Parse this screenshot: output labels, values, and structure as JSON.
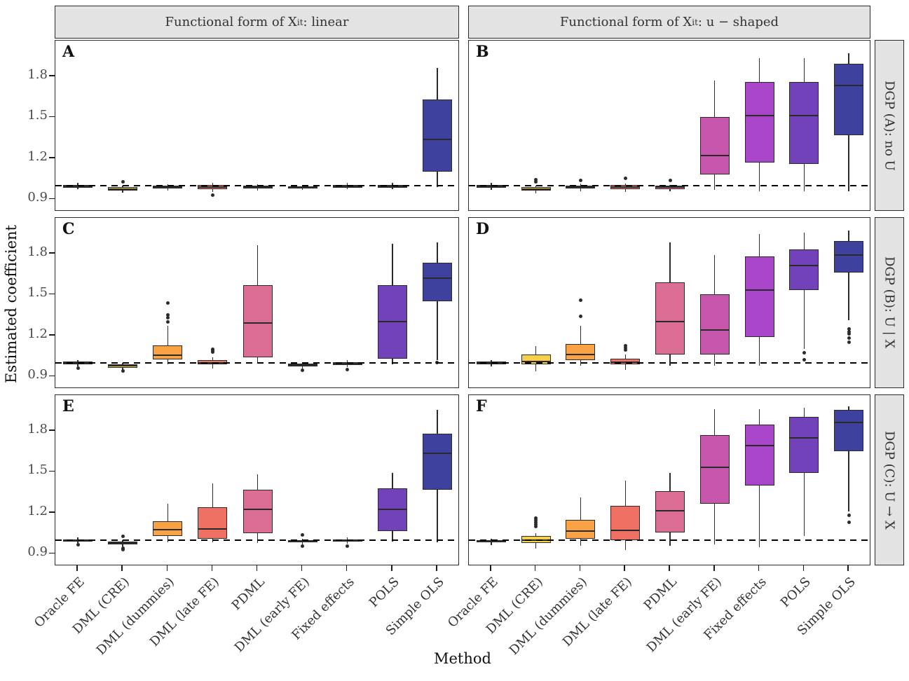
{
  "chart_data": {
    "type": "boxplot",
    "title_x": "Method",
    "title_y": "Estimated coefficient",
    "col_facets": [
      {
        "pre": "Functional form of X",
        "sub": "it",
        "post": " : linear"
      },
      {
        "pre": "Functional form of X",
        "sub": "it",
        "post": " : u − shaped"
      }
    ],
    "row_facets": [
      "DGP (A): no U",
      "DGP (B): U | X",
      "DGP (C): U → X"
    ],
    "methods": [
      "Oracle FE",
      "DML (CRE)",
      "DML (dummies)",
      "DML (late FE)",
      "PDML",
      "DML (early FE)",
      "Fixed effects",
      "POLS",
      "Simple OLS"
    ],
    "method_colors": [
      "#cdd94a",
      "#f6d04b",
      "#f9a243",
      "#ee7163",
      "#dc6d95",
      "#c657ad",
      "#a845c8",
      "#7142ba",
      "#3e419e"
    ],
    "y_ticks": [
      1.8,
      1.5,
      1.2,
      0.9
    ],
    "y_range": [
      0.81,
      2.06
    ],
    "reference_line": 1.0,
    "legend": "none",
    "grid": "off",
    "colors": {
      "strip_bg": "#e3e3e3",
      "panel_border": "#2a2a2a",
      "box_border": "#2a2a2a",
      "outlier": "#2b2b2b",
      "reference_line": "#000000"
    },
    "panels": [
      {
        "label": "A",
        "row": 0,
        "col": 0,
        "boxes": [
          {
            "method": "Oracle FE",
            "whislo": 0.975,
            "q1": 0.985,
            "med": 0.995,
            "q3": 1.005,
            "whishi": 1.02,
            "outliers": []
          },
          {
            "method": "DML (CRE)",
            "whislo": 0.95,
            "q1": 0.962,
            "med": 0.975,
            "q3": 0.99,
            "whishi": 1.0,
            "outliers": [
              1.03
            ]
          },
          {
            "method": "DML (dummies)",
            "whislo": 0.965,
            "q1": 0.98,
            "med": 0.99,
            "q3": 1.0,
            "whishi": 1.012,
            "outliers": []
          },
          {
            "method": "DML (late FE)",
            "whislo": 0.955,
            "q1": 0.975,
            "med": 0.99,
            "q3": 1.003,
            "whishi": 1.018,
            "outliers": [
              0.93
            ]
          },
          {
            "method": "PDML",
            "whislo": 0.965,
            "q1": 0.978,
            "med": 0.988,
            "q3": 0.998,
            "whishi": 1.01,
            "outliers": []
          },
          {
            "method": "DML (early FE)",
            "whislo": 0.968,
            "q1": 0.978,
            "med": 0.987,
            "q3": 0.995,
            "whishi": 1.005,
            "outliers": []
          },
          {
            "method": "Fixed effects",
            "whislo": 0.972,
            "q1": 0.985,
            "med": 0.995,
            "q3": 1.005,
            "whishi": 1.018,
            "outliers": []
          },
          {
            "method": "POLS",
            "whislo": 0.972,
            "q1": 0.985,
            "med": 0.995,
            "q3": 1.006,
            "whishi": 1.018,
            "outliers": []
          },
          {
            "method": "Simple OLS",
            "whislo": 0.99,
            "q1": 1.1,
            "med": 1.34,
            "q3": 1.63,
            "whishi": 1.86,
            "outliers": []
          }
        ]
      },
      {
        "label": "B",
        "row": 0,
        "col": 1,
        "boxes": [
          {
            "method": "Oracle FE",
            "whislo": 0.97,
            "q1": 0.985,
            "med": 0.995,
            "q3": 1.005,
            "whishi": 1.02,
            "outliers": []
          },
          {
            "method": "DML (CRE)",
            "whislo": 0.945,
            "q1": 0.962,
            "med": 0.975,
            "q3": 0.988,
            "whishi": 1.0,
            "outliers": [
              1.03,
              1.045
            ]
          },
          {
            "method": "DML (dummies)",
            "whislo": 0.96,
            "q1": 0.978,
            "med": 0.99,
            "q3": 1.002,
            "whishi": 1.015,
            "outliers": [
              1.04
            ]
          },
          {
            "method": "DML (late FE)",
            "whislo": 0.955,
            "q1": 0.975,
            "med": 0.99,
            "q3": 1.003,
            "whishi": 1.015,
            "outliers": [
              1.055
            ]
          },
          {
            "method": "PDML",
            "whislo": 0.96,
            "q1": 0.975,
            "med": 0.987,
            "q3": 0.997,
            "whishi": 1.007,
            "outliers": [
              1.04
            ]
          },
          {
            "method": "DML (early FE)",
            "whislo": 0.97,
            "q1": 1.08,
            "med": 1.22,
            "q3": 1.5,
            "whishi": 1.77,
            "outliers": []
          },
          {
            "method": "Fixed effects",
            "whislo": 0.96,
            "q1": 1.17,
            "med": 1.51,
            "q3": 1.76,
            "whishi": 1.93,
            "outliers": []
          },
          {
            "method": "POLS",
            "whislo": 0.96,
            "q1": 1.16,
            "med": 1.51,
            "q3": 1.76,
            "whishi": 1.93,
            "outliers": []
          },
          {
            "method": "Simple OLS",
            "whislo": 0.96,
            "q1": 1.37,
            "med": 1.73,
            "q3": 1.89,
            "whishi": 1.97,
            "outliers": []
          }
        ]
      },
      {
        "label": "C",
        "row": 1,
        "col": 0,
        "boxes": [
          {
            "method": "Oracle FE",
            "whislo": 0.975,
            "q1": 0.988,
            "med": 0.998,
            "q3": 1.008,
            "whishi": 1.02,
            "outliers": [
              0.96
            ]
          },
          {
            "method": "DML (CRE)",
            "whislo": 0.95,
            "q1": 0.965,
            "med": 0.978,
            "q3": 0.99,
            "whishi": 1.0,
            "outliers": [
              0.94
            ]
          },
          {
            "method": "DML (dummies)",
            "whislo": 0.99,
            "q1": 1.025,
            "med": 1.055,
            "q3": 1.13,
            "whishi": 1.27,
            "outliers": [
              1.3,
              1.33,
              1.35,
              1.44
            ]
          },
          {
            "method": "DML (late FE)",
            "whislo": 0.96,
            "q1": 0.988,
            "med": 1.0,
            "q3": 1.02,
            "whishi": 1.04,
            "outliers": [
              1.08,
              1.09,
              1.1
            ]
          },
          {
            "method": "PDML",
            "whislo": 1.0,
            "q1": 1.04,
            "med": 1.29,
            "q3": 1.57,
            "whishi": 1.86,
            "outliers": []
          },
          {
            "method": "DML (early FE)",
            "whislo": 0.955,
            "q1": 0.972,
            "med": 0.983,
            "q3": 0.993,
            "whishi": 1.005,
            "outliers": [
              0.945
            ]
          },
          {
            "method": "Fixed effects",
            "whislo": 0.97,
            "q1": 0.985,
            "med": 0.995,
            "q3": 1.005,
            "whishi": 1.02,
            "outliers": [
              0.95
            ]
          },
          {
            "method": "POLS",
            "whislo": 0.99,
            "q1": 1.03,
            "med": 1.3,
            "q3": 1.57,
            "whishi": 1.87,
            "outliers": []
          },
          {
            "method": "Simple OLS",
            "whislo": 1.02,
            "q1": 1.45,
            "med": 1.62,
            "q3": 1.73,
            "whishi": 1.88,
            "outliers": [
              1.0
            ]
          }
        ]
      },
      {
        "label": "D",
        "row": 1,
        "col": 1,
        "boxes": [
          {
            "method": "Oracle FE",
            "whislo": 0.975,
            "q1": 0.988,
            "med": 0.998,
            "q3": 1.008,
            "whishi": 1.02,
            "outliers": []
          },
          {
            "method": "DML (CRE)",
            "whislo": 0.94,
            "q1": 0.99,
            "med": 1.01,
            "q3": 1.06,
            "whishi": 1.12,
            "outliers": []
          },
          {
            "method": "DML (dummies)",
            "whislo": 0.98,
            "q1": 1.02,
            "med": 1.06,
            "q3": 1.14,
            "whishi": 1.27,
            "outliers": [
              1.34,
              1.46
            ]
          },
          {
            "method": "DML (late FE)",
            "whislo": 0.95,
            "q1": 0.99,
            "med": 1.005,
            "q3": 1.03,
            "whishi": 1.06,
            "outliers": [
              1.095,
              1.11,
              1.125
            ]
          },
          {
            "method": "PDML",
            "whislo": 0.98,
            "q1": 1.06,
            "med": 1.3,
            "q3": 1.59,
            "whishi": 1.88,
            "outliers": []
          },
          {
            "method": "DML (early FE)",
            "whislo": 0.98,
            "q1": 1.06,
            "med": 1.24,
            "q3": 1.5,
            "whishi": 1.79,
            "outliers": []
          },
          {
            "method": "Fixed effects",
            "whislo": 0.98,
            "q1": 1.19,
            "med": 1.53,
            "q3": 1.78,
            "whishi": 1.94,
            "outliers": []
          },
          {
            "method": "POLS",
            "whislo": 1.1,
            "q1": 1.53,
            "med": 1.71,
            "q3": 1.83,
            "whishi": 1.95,
            "outliers": [
              1.075,
              1.025
            ]
          },
          {
            "method": "Simple OLS",
            "whislo": 1.31,
            "q1": 1.66,
            "med": 1.79,
            "q3": 1.89,
            "whishi": 1.97,
            "outliers": [
              1.25,
              1.23,
              1.21,
              1.18,
              1.15
            ]
          }
        ]
      },
      {
        "label": "E",
        "row": 2,
        "col": 0,
        "boxes": [
          {
            "method": "Oracle FE",
            "whislo": 0.978,
            "q1": 0.988,
            "med": 0.998,
            "q3": 1.006,
            "whishi": 1.018,
            "outliers": [
              0.965
            ]
          },
          {
            "method": "DML (CRE)",
            "whislo": 0.955,
            "q1": 0.968,
            "med": 0.978,
            "q3": 0.99,
            "whishi": 1.002,
            "outliers": [
              1.03,
              0.94,
              0.928
            ]
          },
          {
            "method": "DML (dummies)",
            "whislo": 0.985,
            "q1": 1.028,
            "med": 1.075,
            "q3": 1.14,
            "whishi": 1.265,
            "outliers": []
          },
          {
            "method": "DML (late FE)",
            "whislo": 0.985,
            "q1": 1.01,
            "med": 1.08,
            "q3": 1.24,
            "whishi": 1.415,
            "outliers": []
          },
          {
            "method": "PDML",
            "whislo": 0.98,
            "q1": 1.05,
            "med": 1.225,
            "q3": 1.37,
            "whishi": 1.48,
            "outliers": []
          },
          {
            "method": "DML (early FE)",
            "whislo": 0.968,
            "q1": 0.982,
            "med": 0.99,
            "q3": 1.0,
            "whishi": 1.012,
            "outliers": [
              1.04,
              0.955
            ]
          },
          {
            "method": "Fixed effects",
            "whislo": 0.975,
            "q1": 0.988,
            "med": 0.998,
            "q3": 1.007,
            "whishi": 1.018,
            "outliers": [
              0.955
            ]
          },
          {
            "method": "POLS",
            "whislo": 0.99,
            "q1": 1.065,
            "med": 1.225,
            "q3": 1.38,
            "whishi": 1.49,
            "outliers": []
          },
          {
            "method": "Simple OLS",
            "whislo": 0.985,
            "q1": 1.37,
            "med": 1.635,
            "q3": 1.78,
            "whishi": 1.95,
            "outliers": []
          }
        ]
      },
      {
        "label": "F",
        "row": 2,
        "col": 1,
        "boxes": [
          {
            "method": "Oracle FE",
            "whislo": 0.965,
            "q1": 0.982,
            "med": 0.993,
            "q3": 1.002,
            "whishi": 1.012,
            "outliers": []
          },
          {
            "method": "DML (CRE)",
            "whislo": 0.94,
            "q1": 0.98,
            "med": 0.998,
            "q3": 1.028,
            "whishi": 1.05,
            "outliers": [
              1.1,
              1.115,
              1.13,
              1.145,
              1.16
            ]
          },
          {
            "method": "DML (dummies)",
            "whislo": 0.96,
            "q1": 1.012,
            "med": 1.068,
            "q3": 1.148,
            "whishi": 1.31,
            "outliers": []
          },
          {
            "method": "DML (late FE)",
            "whislo": 0.93,
            "q1": 1.0,
            "med": 1.07,
            "q3": 1.25,
            "whishi": 1.435,
            "outliers": []
          },
          {
            "method": "PDML",
            "whislo": 0.96,
            "q1": 1.055,
            "med": 1.215,
            "q3": 1.36,
            "whishi": 1.49,
            "outliers": []
          },
          {
            "method": "DML (early FE)",
            "whislo": 0.97,
            "q1": 1.265,
            "med": 1.53,
            "q3": 1.77,
            "whishi": 1.96,
            "outliers": []
          },
          {
            "method": "Fixed effects",
            "whislo": 0.95,
            "q1": 1.4,
            "med": 1.69,
            "q3": 1.845,
            "whishi": 1.96,
            "outliers": []
          },
          {
            "method": "POLS",
            "whislo": 1.03,
            "q1": 1.49,
            "med": 1.75,
            "q3": 1.9,
            "whishi": 1.97,
            "outliers": []
          },
          {
            "method": "Simple OLS",
            "whislo": 1.21,
            "q1": 1.65,
            "med": 1.86,
            "q3": 1.95,
            "whishi": 1.98,
            "outliers": [
              1.18,
              1.13
            ]
          }
        ]
      }
    ]
  }
}
